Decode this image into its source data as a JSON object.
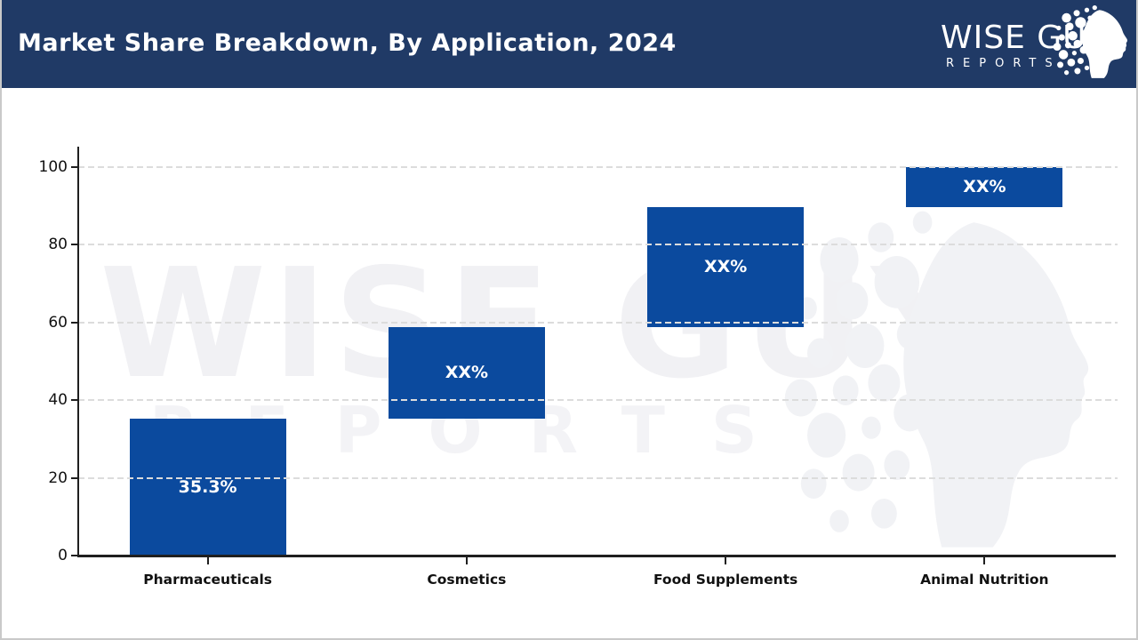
{
  "header": {
    "title": "Market Share Breakdown, By Application, 2024",
    "logo": {
      "name": "WISE GUY",
      "sub": "REPORTS"
    }
  },
  "watermark": {
    "name": "WISE GUY",
    "sub": "REPORTS"
  },
  "chart_data": {
    "type": "bar",
    "subtype": "waterfall",
    "title": "Market Share Breakdown, By Application, 2024",
    "categories": [
      "Pharmaceuticals",
      "Cosmetics",
      "Food Supplements",
      "Animal Nutrition"
    ],
    "series": [
      {
        "name": "Market Share",
        "segments": [
          {
            "category": "Pharmaceuticals",
            "label": "35.3%",
            "start": 0,
            "end": 35.3,
            "value": 35.3
          },
          {
            "category": "Cosmetics",
            "label": "XX%",
            "start": 35.3,
            "end": 58.8,
            "value": 23.5
          },
          {
            "category": "Food Supplements",
            "label": "XX%",
            "start": 58.8,
            "end": 89.6,
            "value": 30.8
          },
          {
            "category": "Animal Nutrition",
            "label": "XX%",
            "start": 89.6,
            "end": 100,
            "value": 10.4
          }
        ]
      }
    ],
    "ylim": [
      0,
      100
    ],
    "yticks": [
      0,
      20,
      40,
      60,
      80,
      100
    ],
    "grid": "horizontal-dashed",
    "legend": "none",
    "bar_color": "#0b4a9e",
    "bar_label_color": "#ffffff"
  },
  "colors": {
    "header_bg": "#203a66",
    "bar": "#0b4a9e",
    "gridline": "#dcdcdc",
    "axis": "#1f1f1f",
    "watermark": "#f1f1f4",
    "page_border": "#c9c9c9"
  }
}
